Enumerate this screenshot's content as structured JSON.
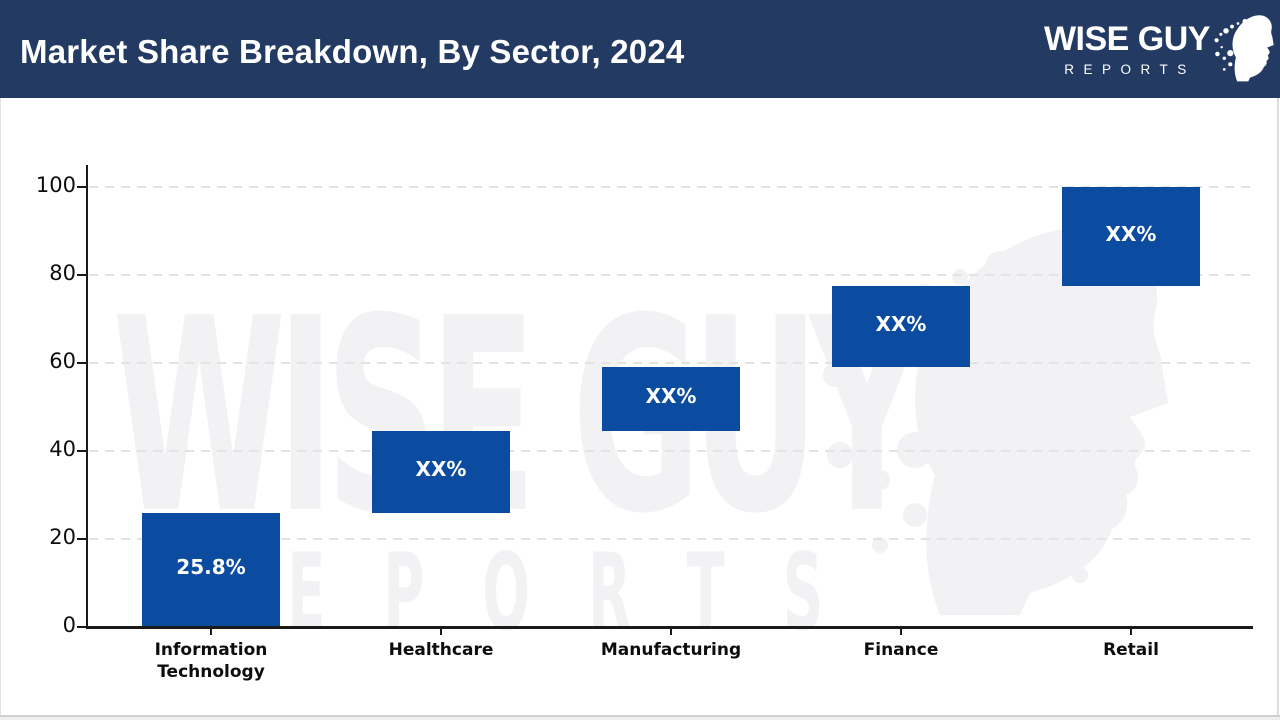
{
  "header": {
    "title": "Market Share Breakdown, By Sector, 2024",
    "logo": {
      "line1": "WISE GUY",
      "line2": "REPORTS"
    }
  },
  "watermark": {
    "line1": "WISE GUY",
    "line2": "REPORTS"
  },
  "colors": {
    "header_bg": "#233a63",
    "bar": "#0b4ba0",
    "grid": "#e3e3e3",
    "axis": "#1a1a1a",
    "watermark": "#f2f2f4",
    "value_label": "#ffffff"
  },
  "chart_data": {
    "type": "bar",
    "subtype": "floating-waterfall",
    "title": "Market Share Breakdown, By Sector, 2024",
    "xlabel": "",
    "ylabel": "",
    "ylim": [
      0,
      105
    ],
    "yticks": [
      0,
      20,
      40,
      60,
      80,
      100
    ],
    "grid": "dashed-horizontal",
    "legend": "none",
    "categories": [
      "Information Technology",
      "Healthcare",
      "Manufacturing",
      "Finance",
      "Retail"
    ],
    "bars": [
      {
        "category": "Information Technology",
        "start": 0,
        "end": 25.8,
        "label": "25.8%"
      },
      {
        "category": "Healthcare",
        "start": 25.8,
        "end": 44.5,
        "label": "XX%"
      },
      {
        "category": "Manufacturing",
        "start": 44.5,
        "end": 59.0,
        "label": "XX%"
      },
      {
        "category": "Finance",
        "start": 59.0,
        "end": 77.5,
        "label": "XX%"
      },
      {
        "category": "Retail",
        "start": 77.5,
        "end": 100.0,
        "label": "XX%"
      }
    ]
  }
}
